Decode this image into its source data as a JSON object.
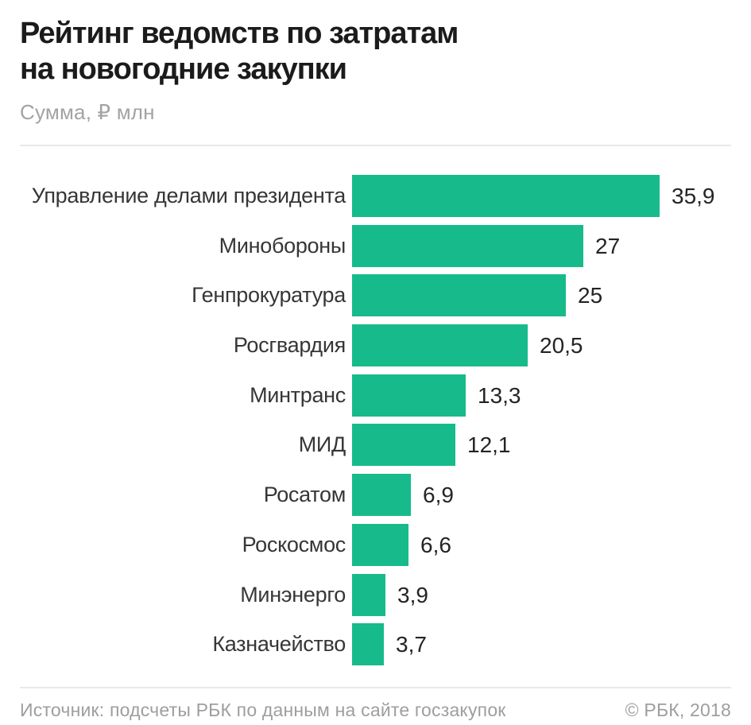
{
  "header": {
    "title_line1": "Рейтинг ведомств по затратам",
    "title_line2": "на новогодние закупки",
    "subtitle": "Сумма, ₽ млн"
  },
  "chart_data": {
    "type": "bar",
    "orientation": "horizontal",
    "title": "Рейтинг ведомств по затратам на новогодние закупки",
    "unit_label": "Сумма, ₽ млн",
    "categories": [
      "Управление делами президента",
      "Минобороны",
      "Генпрокуратура",
      "Росгвардия",
      "Минтранс",
      "МИД",
      "Росатом",
      "Роскосмос",
      "Минэнерго",
      "Казначейство"
    ],
    "values": [
      35.9,
      27,
      25,
      20.5,
      13.3,
      12.1,
      6.9,
      6.6,
      3.9,
      3.7
    ],
    "value_labels": [
      "35,9",
      "27",
      "25",
      "20,5",
      "13,3",
      "12,1",
      "6,9",
      "6,6",
      "3,9",
      "3,7"
    ],
    "axis_max": 35.9,
    "grid": false,
    "legend": false,
    "bar_color": "#17ba8b",
    "value_label_position": "outside-end"
  },
  "footer": {
    "source": "Источник: подсчеты РБК по данным на сайте госзакупок",
    "copyright": "© РБК, 2018"
  },
  "colors": {
    "background": "#ffffff",
    "bar": "#17ba8b",
    "title_text": "#1b1b1b",
    "label_text": "#363636",
    "muted_text": "#a3a3a3",
    "divider": "#e9e9e9"
  }
}
